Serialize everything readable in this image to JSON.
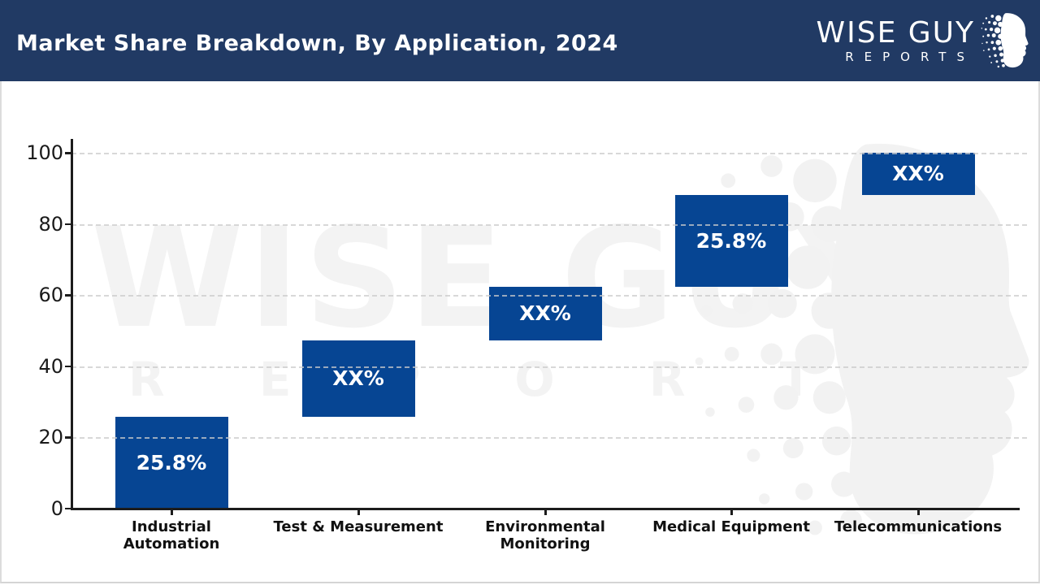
{
  "header": {
    "title": "Market Share Breakdown, By Application, 2024",
    "logo": {
      "line1": "WISE GUY",
      "line2": "REPORTS"
    }
  },
  "watermark": {
    "line1": "WISE GUY",
    "line2": "R E P O R T S"
  },
  "colors": {
    "header_bg": "#213A64",
    "bar": "#064593",
    "bar_label": "#FFFFFF",
    "grid": "#D8D8D8",
    "axis": "#1C1C1C",
    "watermark": "#F2F2F2",
    "title_text": "#FFFFFF"
  },
  "chart_data": {
    "type": "bar",
    "variant": "waterfall",
    "title": "Market Share Breakdown, By Application, 2024",
    "xlabel": "",
    "ylabel": "",
    "ylim": [
      0,
      104
    ],
    "yticks": [
      0,
      20,
      40,
      60,
      80,
      100
    ],
    "grid": "horizontal-dashed",
    "legend": "none",
    "categories": [
      [
        "Industrial",
        "Automation"
      ],
      [
        "Test & Measurement"
      ],
      [
        "Environmental",
        "Monitoring"
      ],
      [
        "Medical Equipment"
      ],
      [
        "Telecommunications"
      ]
    ],
    "segments": [
      {
        "category": "Industrial Automation",
        "start": 0,
        "end": 25.8,
        "label": "25.8%"
      },
      {
        "category": "Test & Measurement",
        "start": 25.8,
        "end": 47.3,
        "label": "XX%"
      },
      {
        "category": "Environmental Monitoring",
        "start": 47.3,
        "end": 62.4,
        "label": "XX%"
      },
      {
        "category": "Medical Equipment",
        "start": 62.4,
        "end": 88.2,
        "label": "25.8%"
      },
      {
        "category": "Telecommunications",
        "start": 88.2,
        "end": 100,
        "label": "XX%"
      }
    ]
  }
}
